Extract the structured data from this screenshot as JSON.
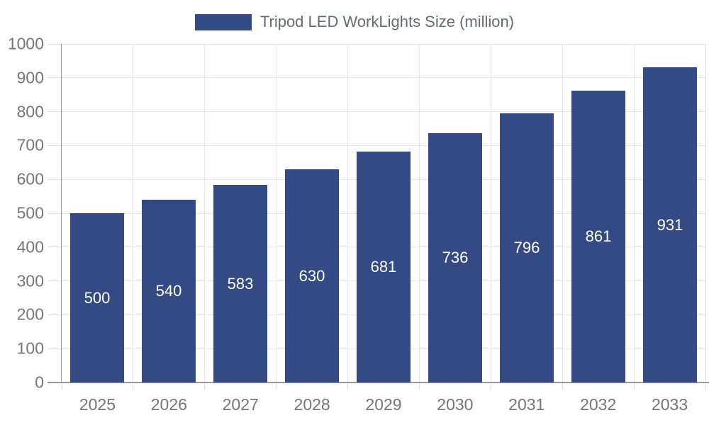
{
  "legend": {
    "label": "Tripod LED WorkLights Size (million)"
  },
  "colors": {
    "bar": "#344A85",
    "grid": "#E4E4E4",
    "axis": "#999999",
    "tick": "#DDDDDD",
    "axis_label": "#757575",
    "bar_label": "#FFFFFF",
    "legend_text": "#666B70",
    "background": "#FFFFFF"
  },
  "chart_data": {
    "type": "bar",
    "title": "Tripod LED WorkLights Size (million)",
    "categories": [
      "2025",
      "2026",
      "2027",
      "2028",
      "2029",
      "2030",
      "2031",
      "2032",
      "2033"
    ],
    "values": [
      500,
      540,
      583,
      630,
      681,
      736,
      796,
      861,
      931
    ],
    "xlabel": "",
    "ylabel": "",
    "ylim": [
      0,
      1000
    ],
    "y_ticks": [
      0,
      100,
      200,
      300,
      400,
      500,
      600,
      700,
      800,
      900,
      1000
    ],
    "grid": true,
    "legend_position": "top",
    "value_label_position": "inside-center"
  }
}
